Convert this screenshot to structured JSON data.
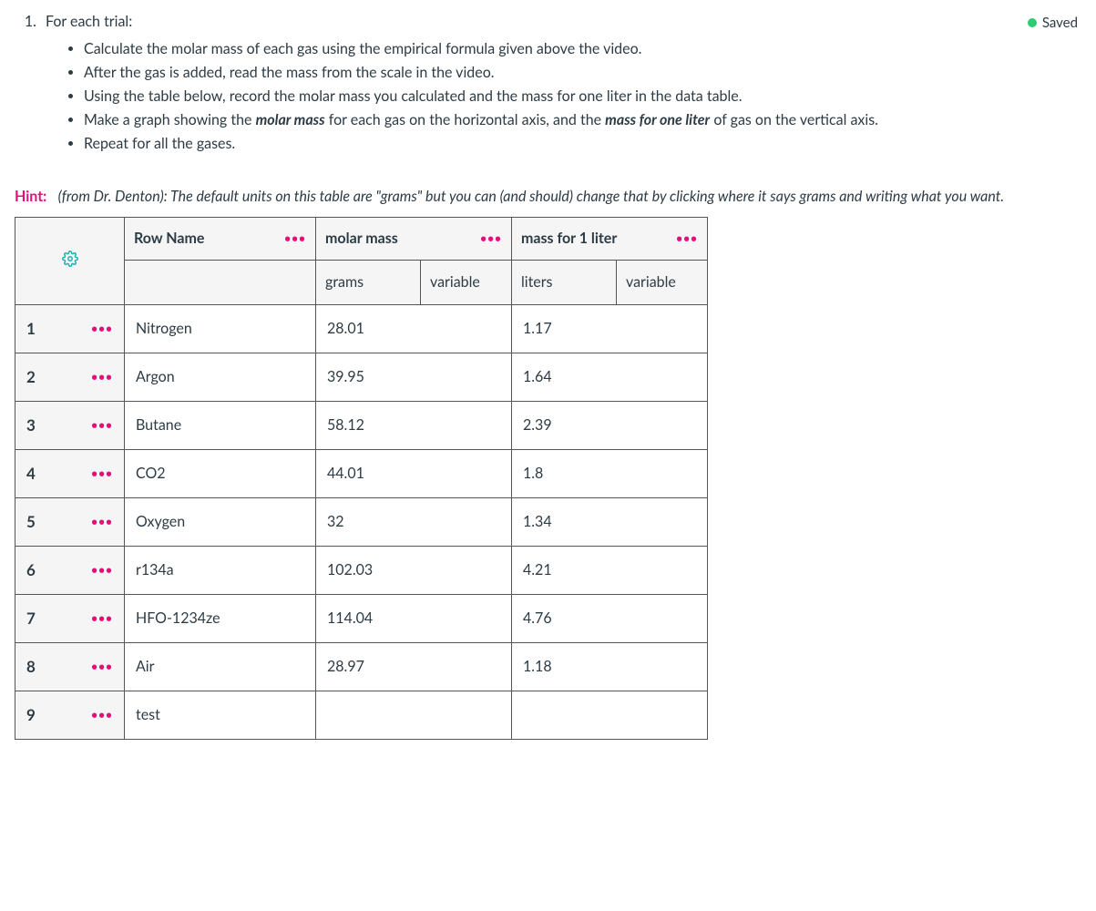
{
  "saved_label": "Saved",
  "question": {
    "number": "1.",
    "lead": "For each trial:",
    "bullets": [
      {
        "pre": "Calculate the molar mass of each gas using the empirical formula given above the video."
      },
      {
        "pre": "After the gas is added, read the mass from the scale in the video."
      },
      {
        "pre": "Using the table below, record the molar mass you calculated and the mass for one liter in the data table."
      },
      {
        "pre": "Make a graph showing the ",
        "b1": "molar mass",
        "mid": " for each gas on the horizontal axis, and the ",
        "b2": "mass for one liter",
        "post": " of gas on the vertical axis."
      },
      {
        "pre": "Repeat for all the gases."
      }
    ]
  },
  "hint": {
    "label": "Hint:",
    "text": "(from Dr. Denton): The default units on this table are \"grams\" but you can (and should) change that by clicking where it says grams and writing what you want."
  },
  "table": {
    "headers": {
      "rowname": "Row Name",
      "col1": "molar mass",
      "col2": "mass for 1 liter"
    },
    "subheaders": {
      "c1a": "grams",
      "c1b": "variable",
      "c2a": "liters",
      "c2b": "variable"
    },
    "rows": [
      {
        "n": "1",
        "name": "Nitrogen",
        "v1": "28.01",
        "v2": "1.17"
      },
      {
        "n": "2",
        "name": "Argon",
        "v1": "39.95",
        "v2": "1.64"
      },
      {
        "n": "3",
        "name": "Butane",
        "v1": "58.12",
        "v2": "2.39"
      },
      {
        "n": "4",
        "name": "CO2",
        "v1": "44.01",
        "v2": "1.8"
      },
      {
        "n": "5",
        "name": "Oxygen",
        "v1": "32",
        "v2": "1.34"
      },
      {
        "n": "6",
        "name": "r134a",
        "v1": "102.03",
        "v2": "4.21"
      },
      {
        "n": "7",
        "name": "HFO-1234ze",
        "v1": "114.04",
        "v2": "4.76"
      },
      {
        "n": "8",
        "name": "Air",
        "v1": "28.97",
        "v2": "1.18"
      },
      {
        "n": "9",
        "name": "test",
        "v1": "",
        "v2": ""
      }
    ],
    "ellipsis": "•••"
  },
  "colors": {
    "hint_label": "#e80c7a",
    "accent_teal": "#1ab3b3",
    "saved_dot": "#2ecc71",
    "text": "#2d3b45",
    "border": "#555555",
    "header_bg": "#f5f5f5"
  }
}
